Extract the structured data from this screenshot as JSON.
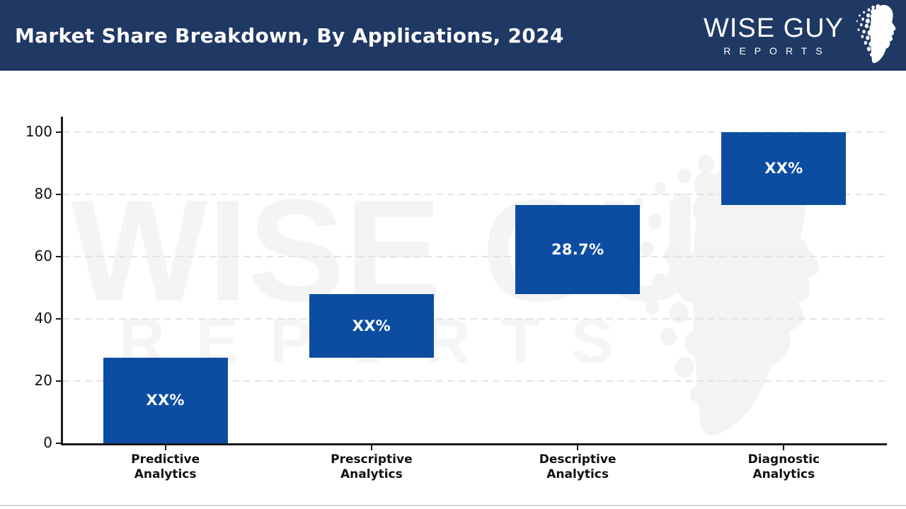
{
  "header": {
    "title": "Market Share Breakdown, By Applications, 2024",
    "background_color": "#1f3864",
    "logo": {
      "name": "WISE GUY",
      "tagline": "REPORTS"
    }
  },
  "watermark": {
    "name": "WISE GUY",
    "tagline": "REPORTS"
  },
  "chart_data": {
    "type": "bar",
    "subtype": "waterfall",
    "title": "Market Share Breakdown, By Applications, 2024",
    "categories": [
      "Predictive Analytics",
      "Prescriptive Analytics",
      "Descriptive Analytics",
      "Diagnostic Analytics"
    ],
    "segments": [
      {
        "category": "Predictive Analytics",
        "start": 0,
        "end": 27.6,
        "value_label": "XX%"
      },
      {
        "category": "Prescriptive Analytics",
        "start": 27.6,
        "end": 48,
        "value_label": "XX%"
      },
      {
        "category": "Descriptive Analytics",
        "start": 48,
        "end": 76.7,
        "value_label": "28.7%"
      },
      {
        "category": "Diagnostic Analytics",
        "start": 76.7,
        "end": 100,
        "value_label": "XX%"
      }
    ],
    "ylim": [
      0,
      100
    ],
    "yticks": [
      0,
      20,
      40,
      60,
      80,
      100
    ],
    "grid": "horizontal-dashed",
    "legend": "none",
    "bar_color": "#0c4da2",
    "bar_label_color": "#ffffff",
    "axis_color": "#1a1a1a"
  }
}
